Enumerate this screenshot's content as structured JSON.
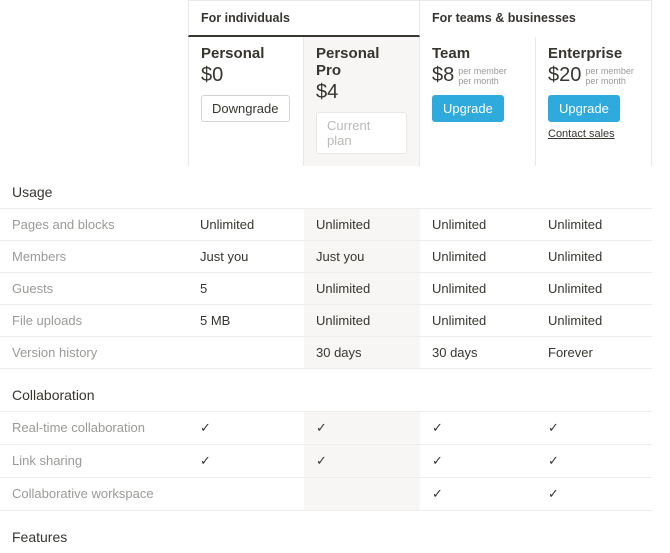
{
  "colors": {
    "accent": "#2eaadc",
    "text": "#37352f",
    "muted": "#9b9a97",
    "border": "#e8e8e6",
    "row_border": "#ededec",
    "shade_bg": "#f7f6f5"
  },
  "headers": {
    "individuals": "For individuals",
    "teams": "For teams & businesses"
  },
  "plans": {
    "personal": {
      "name": "Personal",
      "price": "$0",
      "sub": "",
      "button": "Downgrade",
      "button_style": "outline"
    },
    "pro": {
      "name": "Personal Pro",
      "price": "$4",
      "sub": "",
      "button": "Current plan",
      "button_style": "disabled"
    },
    "team": {
      "name": "Team",
      "price": "$8",
      "sub": "per member\nper month",
      "button": "Upgrade",
      "button_style": "blue"
    },
    "enterprise": {
      "name": "Enterprise",
      "price": "$20",
      "sub": "per member\nper month",
      "button": "Upgrade",
      "button_style": "blue",
      "contact": "Contact sales"
    }
  },
  "sections": [
    {
      "title": "Usage",
      "rows": [
        {
          "label": "Pages and blocks",
          "values": [
            "Unlimited",
            "Unlimited",
            "Unlimited",
            "Unlimited"
          ]
        },
        {
          "label": "Members",
          "values": [
            "Just you",
            "Just you",
            "Unlimited",
            "Unlimited"
          ]
        },
        {
          "label": "Guests",
          "values": [
            "5",
            "Unlimited",
            "Unlimited",
            "Unlimited"
          ]
        },
        {
          "label": "File uploads",
          "values": [
            "5 MB",
            "Unlimited",
            "Unlimited",
            "Unlimited"
          ]
        },
        {
          "label": "Version history",
          "values": [
            "",
            "30 days",
            "30 days",
            "Forever"
          ]
        }
      ]
    },
    {
      "title": "Collaboration",
      "rows": [
        {
          "label": "Real-time collaboration",
          "values": [
            "✓",
            "✓",
            "✓",
            "✓"
          ]
        },
        {
          "label": "Link sharing",
          "values": [
            "✓",
            "✓",
            "✓",
            "✓"
          ]
        },
        {
          "label": "Collaborative workspace",
          "values": [
            "",
            "",
            "✓",
            "✓"
          ]
        }
      ]
    },
    {
      "title": "Features",
      "rows": []
    }
  ]
}
